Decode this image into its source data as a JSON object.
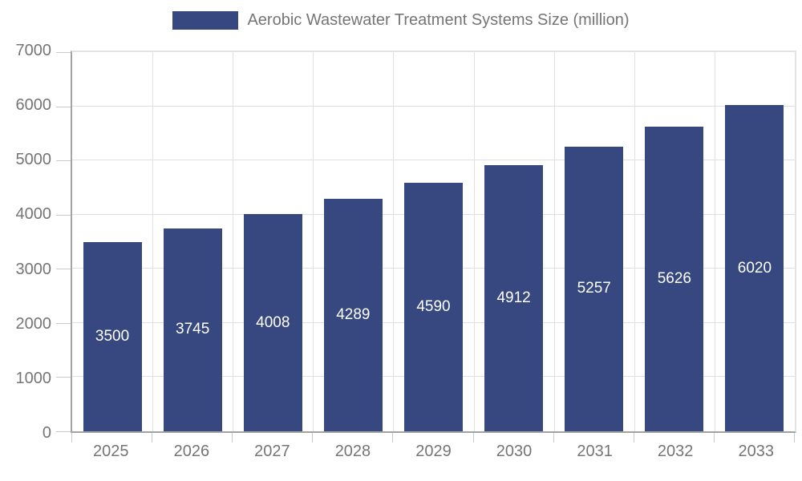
{
  "chart_data": {
    "type": "bar",
    "title": "Aerobic Wastewater Treatment Systems Size (million)",
    "categories": [
      "2025",
      "2026",
      "2027",
      "2028",
      "2029",
      "2030",
      "2031",
      "2032",
      "2033"
    ],
    "series": [
      {
        "name": "Aerobic Wastewater Treatment Systems Size (million)",
        "values": [
          3500,
          3745,
          4008,
          4289,
          4590,
          4912,
          5257,
          5626,
          6020
        ],
        "color": "#374880"
      }
    ],
    "ylim": [
      0,
      7000
    ],
    "ytick_interval": 1000,
    "yticks": [
      0,
      1000,
      2000,
      3000,
      4000,
      5000,
      6000,
      7000
    ],
    "grid": true,
    "legend_position": "top-center",
    "value_label_position": "inside-center"
  },
  "legend": {
    "items": [
      {
        "label": "Aerobic Wastewater Treatment Systems Size (million)",
        "color": "#374880"
      }
    ]
  },
  "colors": {
    "bar": "#374880",
    "value_label": "#ffffff",
    "axis_line": "#a3a3a3",
    "gridline": "#e0e0e0",
    "tick_label": "#757575",
    "background": "#ffffff"
  }
}
